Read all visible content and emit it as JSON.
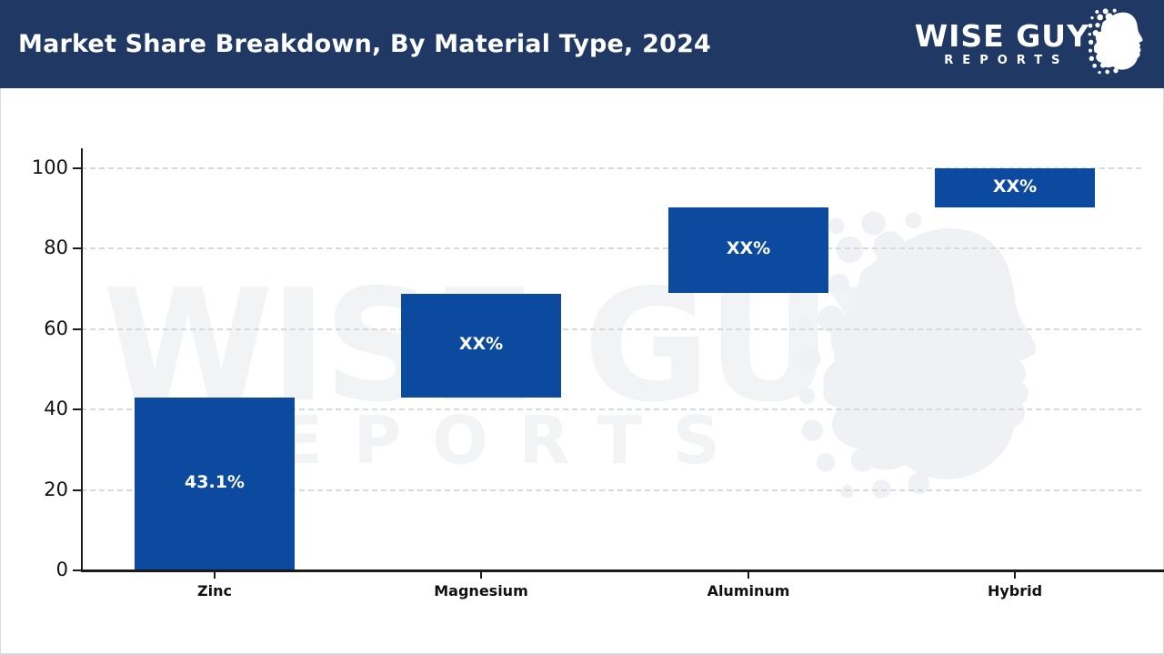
{
  "header": {
    "title": "Market Share Breakdown, By Material Type, 2024",
    "logo": {
      "line1": "WISE GUY",
      "line2": "REPORTS"
    }
  },
  "watermark": {
    "line1": "WISE GUY",
    "line2": "REPORTS"
  },
  "colors": {
    "header_bg": "#203864",
    "bar": "#0b4a9e",
    "bar_label": "#ffffff",
    "grid": "#d9d9d9",
    "axis": "#1a1a1a",
    "watermark": "#f2f3f5"
  },
  "chart_data": {
    "type": "bar",
    "subtype": "waterfall",
    "title": "Market Share Breakdown, By Material Type, 2024",
    "categories": [
      "Zinc",
      "Magnesium",
      "Aluminum",
      "Hybrid"
    ],
    "series": [
      {
        "name": "Market Share (%)",
        "segments": [
          {
            "category": "Zinc",
            "start": 0,
            "end": 43.1,
            "label": "43.1%"
          },
          {
            "category": "Magnesium",
            "start": 43.1,
            "end": 68.9,
            "label": "XX%"
          },
          {
            "category": "Aluminum",
            "start": 68.9,
            "end": 90.2,
            "label": "XX%"
          },
          {
            "category": "Hybrid",
            "start": 90.2,
            "end": 100,
            "label": "XX%"
          }
        ]
      }
    ],
    "xlabel": "",
    "ylabel": "",
    "ylim": [
      0,
      105
    ],
    "yticks": [
      0,
      20,
      40,
      60,
      80,
      100
    ],
    "grid": "horizontal-dashed",
    "legend": "none"
  }
}
